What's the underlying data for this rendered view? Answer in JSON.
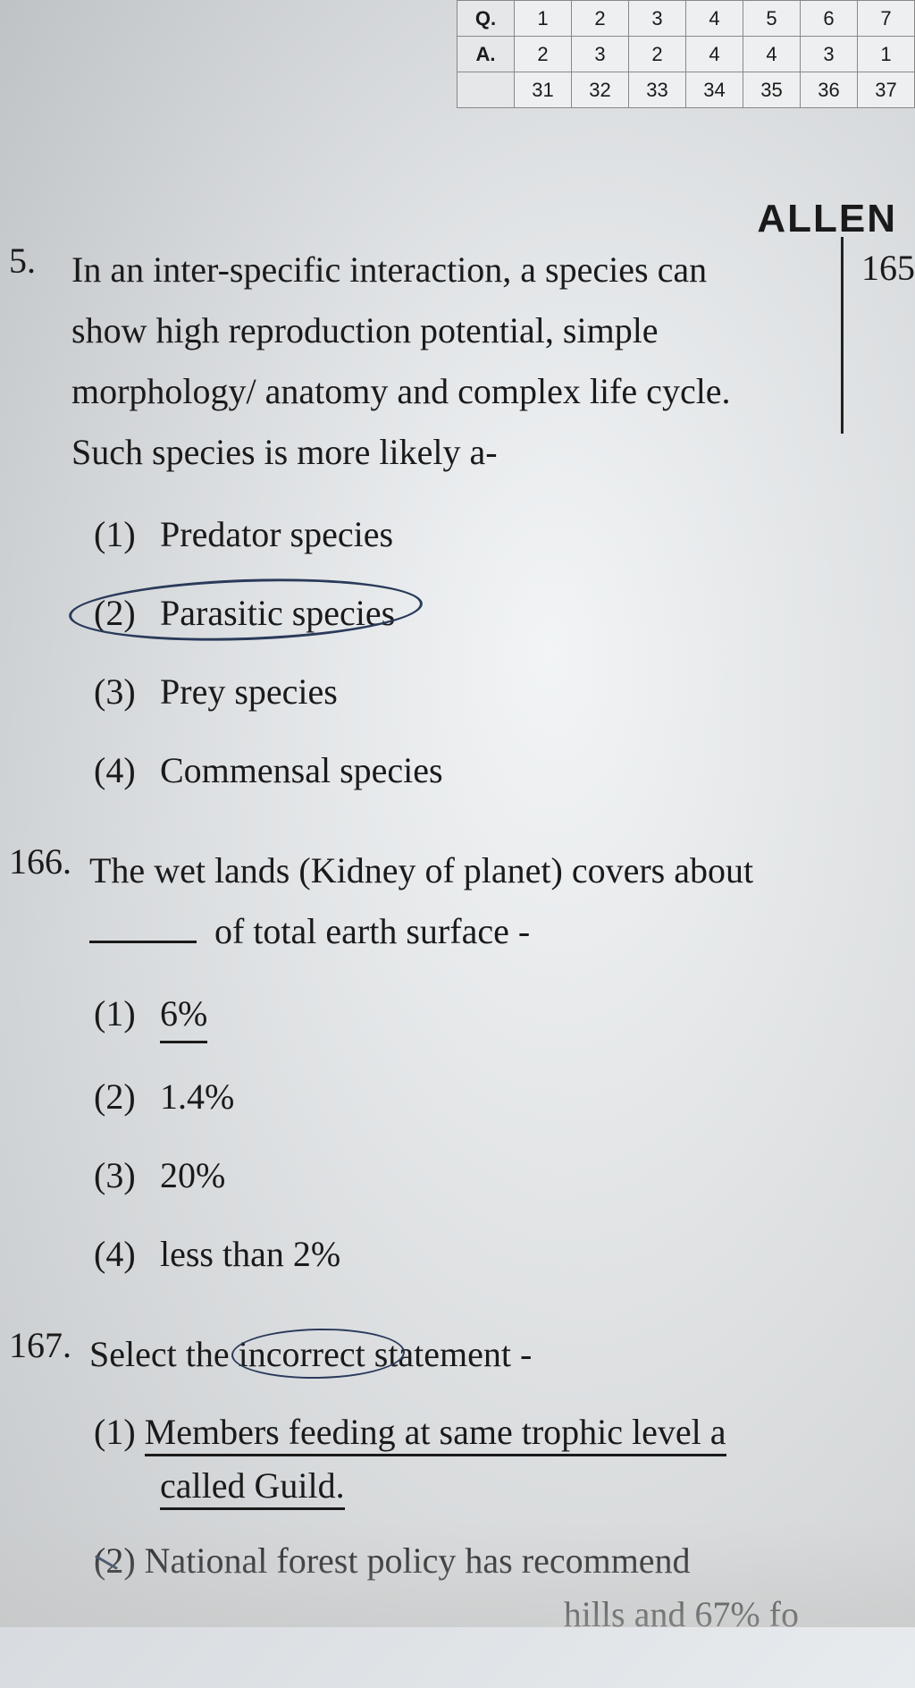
{
  "answer_table": {
    "rows": [
      {
        "label": "Q.",
        "cells": [
          "1",
          "2",
          "3",
          "4",
          "5",
          "6",
          "7"
        ]
      },
      {
        "label": "A.",
        "cells": [
          "2",
          "3",
          "2",
          "4",
          "4",
          "3",
          "1"
        ]
      },
      {
        "label": "",
        "cells": [
          "31",
          "32",
          "33",
          "34",
          "35",
          "36",
          "37"
        ]
      }
    ]
  },
  "brand": "ALLEN",
  "side_number": "165",
  "q5": {
    "number": "5.",
    "text_l1": "In an inter-specific interaction, a species can",
    "text_l2": "show high reproduction potential, simple",
    "text_l3": "morphology/ anatomy and complex life cycle.",
    "text_l4": "Such species is more likely a-",
    "options": [
      {
        "num": "(1)",
        "text": "Predator species"
      },
      {
        "num": "(2)",
        "text": "Parasitic species"
      },
      {
        "num": "(3)",
        "text": "Prey species"
      },
      {
        "num": "(4)",
        "text": "Commensal species"
      }
    ]
  },
  "q166": {
    "number": "166.",
    "text_l1": "The wet lands (Kidney of planet) covers about",
    "text_l2": "of total earth surface -",
    "options": [
      {
        "num": "(1)",
        "text": "6%"
      },
      {
        "num": "(2)",
        "text": "1.4%"
      },
      {
        "num": "(3)",
        "text": "20%"
      },
      {
        "num": "(4)",
        "text": "less than 2%"
      }
    ]
  },
  "q167": {
    "number": "167.",
    "text_before": "Select the",
    "circled": "incorrect",
    "text_after": "statement -",
    "options": [
      {
        "num": "(1)",
        "text_l1": "Members feeding at same trophic level a",
        "text_l2": "called Guild."
      },
      {
        "num": "(2)",
        "text_l1": "National forest policy has recommend",
        "text_l2": "hills and 67% fo"
      }
    ]
  }
}
